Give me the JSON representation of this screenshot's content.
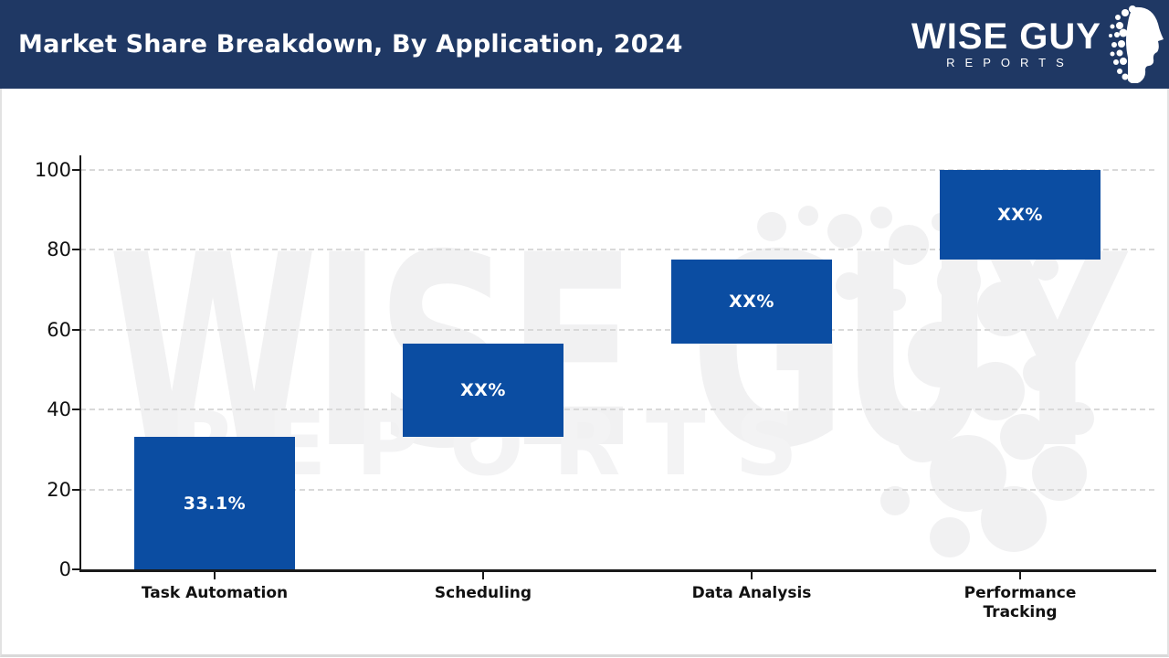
{
  "header": {
    "title": "Market Share Breakdown, By Application, 2024",
    "logo": {
      "line1": "WISE GUY",
      "line2": "REPORTS"
    }
  },
  "watermark": {
    "line1": "WISE GUY",
    "line2": "REPORTS"
  },
  "colors": {
    "header_bg": "#1f3864",
    "bar": "#0b4da2",
    "grid": "#d9d9d9",
    "axis": "#1a1a1a",
    "watermark": "#f1f1f2",
    "label_on_bar": "#ffffff"
  },
  "chart_data": {
    "type": "bar",
    "subtype": "waterfall",
    "title": "Market Share Breakdown, By Application, 2024",
    "xlabel": "",
    "ylabel": "",
    "ylim": [
      0,
      104
    ],
    "yticks": [
      0,
      20,
      40,
      60,
      80,
      100
    ],
    "grid": "horizontal-dashed",
    "legend": null,
    "categories": [
      "Task Automation",
      "Scheduling",
      "Data Analysis",
      "Performance Tracking"
    ],
    "categories_display": [
      [
        "Task Automation"
      ],
      [
        "Scheduling"
      ],
      [
        "Data Analysis"
      ],
      [
        "Performance",
        "Tracking"
      ]
    ],
    "segments": [
      {
        "category": "Task Automation",
        "start": 0,
        "end": 33.1,
        "label": "33.1%"
      },
      {
        "category": "Scheduling",
        "start": 33.1,
        "end": 56.6,
        "label": "XX%"
      },
      {
        "category": "Data Analysis",
        "start": 56.6,
        "end": 77.5,
        "label": "XX%"
      },
      {
        "category": "Performance Tracking",
        "start": 77.5,
        "end": 100,
        "label": "XX%"
      }
    ]
  }
}
